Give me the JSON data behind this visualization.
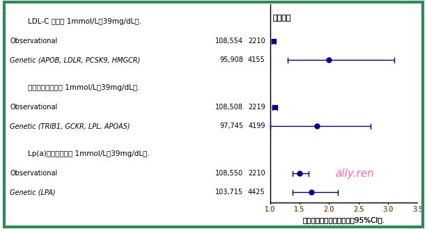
{
  "title_col": "个体事件",
  "xlabel": "心肌梗死因果关系风险比（95%CI）.",
  "xlim": [
    1.0,
    3.5
  ],
  "xticks": [
    1.0,
    1.5,
    2.0,
    2.5,
    3.0,
    3.5
  ],
  "watermark": "ally.ren",
  "sections": [
    {
      "header": "LDL-C 每增加 1mmol/L（39mg/dL）.",
      "rows": [
        {
          "label": "Observational",
          "label_italic": false,
          "n": "108,554",
          "events": "2210",
          "est": 1.06,
          "lo": 1.03,
          "hi": 1.09,
          "marker": "s",
          "markersize": 4
        },
        {
          "label": "Genetic (APOB, LDLR, PCSK9, HMGCR)",
          "label_italic": true,
          "n": "95,908",
          "events": "4155",
          "est": 2.0,
          "lo": 1.3,
          "hi": 3.1,
          "marker": "o",
          "markersize": 5
        }
      ]
    },
    {
      "header": "残余胆固醇每增加 1mmol/L（39mg/dL）.",
      "rows": [
        {
          "label": "Observational",
          "label_italic": false,
          "n": "108,508",
          "events": "2219",
          "est": 1.08,
          "lo": 1.04,
          "hi": 1.12,
          "marker": "s",
          "markersize": 4
        },
        {
          "label": "Genetic (TRIB1, GCKR, LPL, APOA5)",
          "label_italic": true,
          "n": "97,745",
          "events": "4199",
          "est": 1.8,
          "lo": 1.0,
          "hi": 2.7,
          "marker": "o",
          "markersize": 5
        }
      ]
    },
    {
      "header": "Lp(a)胆固醇每增加 1mmol/L（39mg/dL）.",
      "rows": [
        {
          "label": "Observational",
          "label_italic": false,
          "n": "108,550",
          "events": "2210",
          "est": 1.5,
          "lo": 1.38,
          "hi": 1.65,
          "marker": "o",
          "markersize": 5
        },
        {
          "label": "Genetic (LPA)",
          "label_italic": true,
          "n": "103,715",
          "events": "4425",
          "est": 1.7,
          "lo": 1.38,
          "hi": 2.15,
          "marker": "o",
          "markersize": 5
        }
      ]
    }
  ],
  "bg_color": "#ffffff",
  "border_color": "#2e8b57",
  "text_color": "#000000",
  "dot_color": "#00008b",
  "line_color": "#000000",
  "axis_color": "#8b4513",
  "watermark_color": "#ff69b4"
}
